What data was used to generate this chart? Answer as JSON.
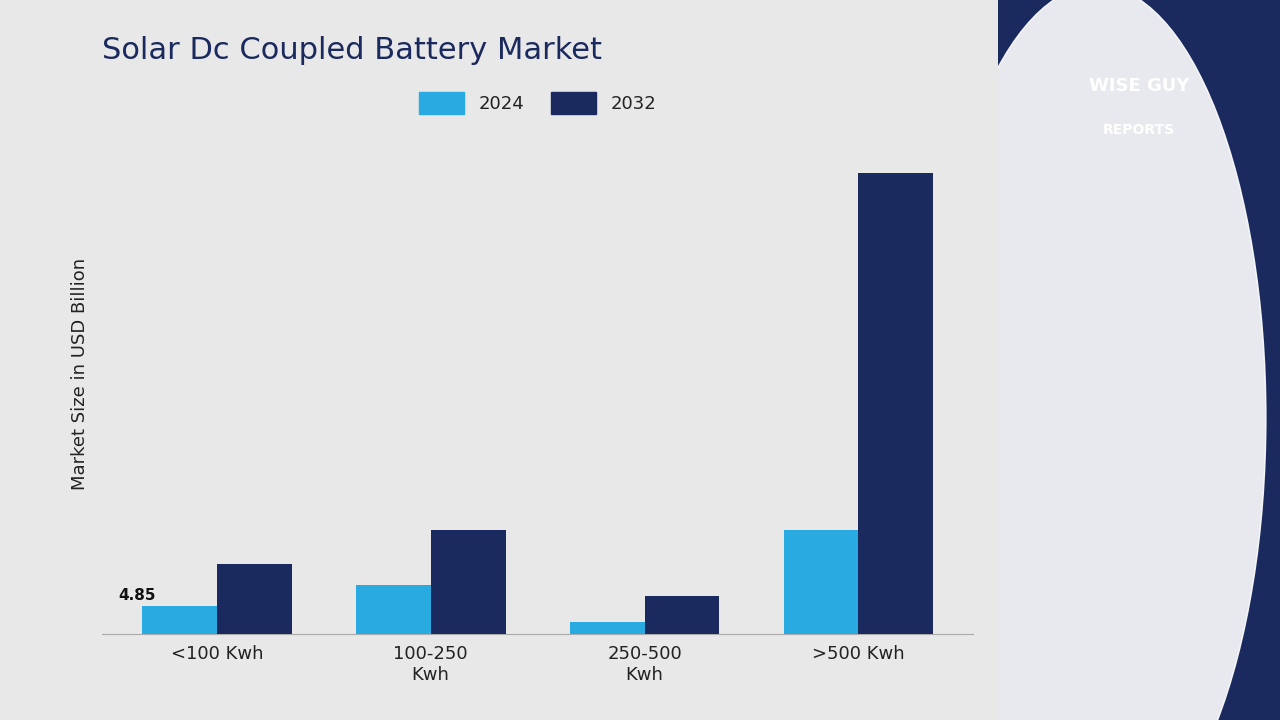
{
  "title": "Solar Dc Coupled Battery Market",
  "ylabel": "Market Size in USD Billion",
  "categories": [
    "<100 Kwh",
    "100-250\nKwh",
    "250-500\nKwh",
    ">500 Kwh"
  ],
  "values_2024": [
    4.85,
    8.5,
    2.0,
    18.0
  ],
  "values_2032": [
    12.0,
    18.0,
    6.5,
    80.0
  ],
  "annotation_value": "4.85",
  "color_2024": "#29ABE2",
  "color_2032": "#1B2A5E",
  "legend_labels": [
    "2024",
    "2032"
  ],
  "background_color": "#E8E8E8",
  "title_color": "#1B2A5E",
  "bar_width": 0.35,
  "right_panel_color": "#1B2A5E",
  "ylim": [
    0,
    90
  ]
}
